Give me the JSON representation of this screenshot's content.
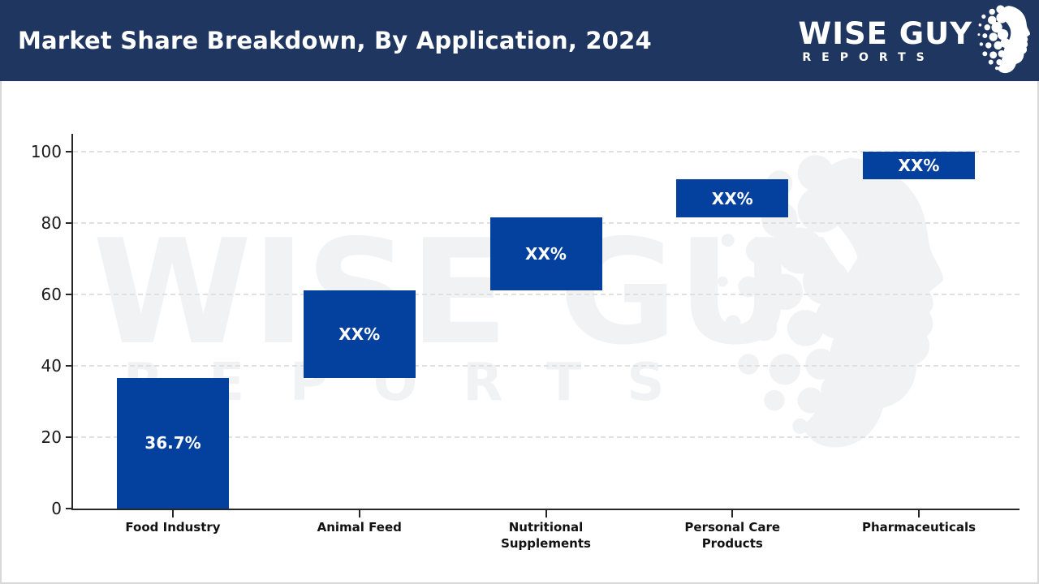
{
  "header": {
    "title": "Market Share Breakdown, By Application, 2024",
    "logo": {
      "wordmark": "WISE GUY",
      "subtext": "REPORTS"
    }
  },
  "watermark": {
    "wordmark": "WISE GUY",
    "subtext": "REPORTS"
  },
  "chart_data": {
    "type": "bar",
    "subtype": "waterfall",
    "title": "Market Share Breakdown, By Application, 2024",
    "unit": "percent market share",
    "categories": [
      "Food Industry",
      "Animal Feed",
      "Nutritional Supplements",
      "Personal Care Products",
      "Pharmaceuticals"
    ],
    "series": [
      {
        "name": "Market Share 2024",
        "starts": [
          0,
          36.7,
          61.2,
          81.6,
          92.2
        ],
        "values": [
          36.7,
          24.5,
          20.4,
          10.6,
          7.8
        ]
      }
    ],
    "bar_labels": [
      "36.7%",
      "XX%",
      "XX%",
      "XX%",
      "XX%"
    ],
    "y_ticks": [
      "0",
      "20",
      "40",
      "60",
      "80",
      "100"
    ],
    "ylim": [
      0,
      100
    ],
    "grid": "horizontal-dashed",
    "legend": "none"
  },
  "colors": {
    "header_bg": "#1f3660",
    "bar": "#04409d",
    "bar_label": "#ffffff",
    "grid": "#e0e0e0",
    "axis": "#262626",
    "watermark": "#f1f2f4"
  }
}
